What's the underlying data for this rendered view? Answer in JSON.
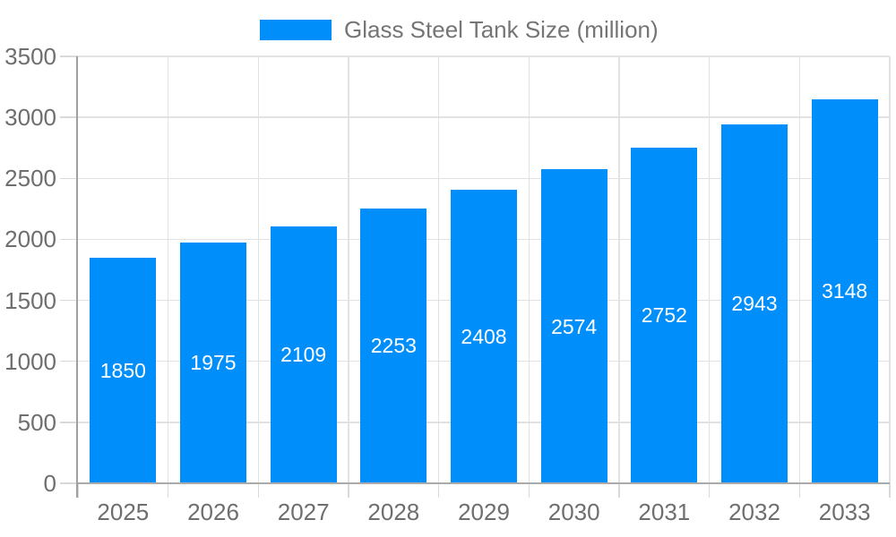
{
  "chart_data": {
    "type": "bar",
    "title": "Glass Steel Tank Size (million)",
    "legend_entries": [
      "Glass Steel Tank Size (million)"
    ],
    "legend_position": "top-center",
    "categories": [
      "2025",
      "2026",
      "2027",
      "2028",
      "2029",
      "2030",
      "2031",
      "2032",
      "2033"
    ],
    "series": [
      {
        "name": "Glass Steel Tank Size (million)",
        "values": [
          1850,
          1975,
          2109,
          2253,
          2408,
          2574,
          2752,
          2943,
          3148
        ]
      }
    ],
    "xlabel": "",
    "ylabel": "",
    "ylim": [
      0,
      3500
    ],
    "yticks": [
      0,
      500,
      1000,
      1500,
      2000,
      2500,
      3000,
      3500
    ],
    "grid": true,
    "bar_labels_inside": true,
    "colors": {
      "bar": "#008FFA",
      "bar_label": "#FFFFFF",
      "axis_label": "#6E6E6E",
      "legend_text": "#757575",
      "gridline": "#E2E2E2",
      "tick": "#D9D9D9",
      "axis_line": "#ABABAB",
      "background": "#FFFFFF"
    }
  }
}
